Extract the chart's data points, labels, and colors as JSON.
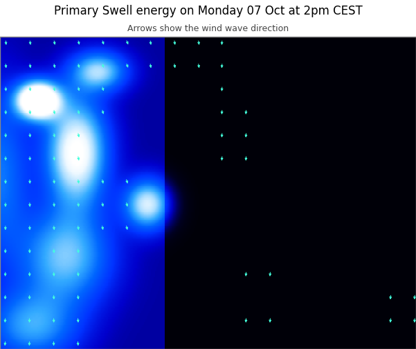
{
  "title": "Primary Swell energy on Monday 07 Oct at 2pm CEST",
  "subtitle": "Arrows show the wind wave direction",
  "title_fontsize": 12,
  "subtitle_fontsize": 9,
  "fig_width": 6.01,
  "fig_height": 5.04,
  "dpi": 100,
  "lon_min": -18,
  "lon_max": 20,
  "lat_min": 35,
  "lat_max": 62,
  "land_color": "#aaaaaa",
  "ocean_bg_color": "#000008",
  "arrow_color": "#44ffdd",
  "border_color": "#333333",
  "country_border_color": "#222222"
}
